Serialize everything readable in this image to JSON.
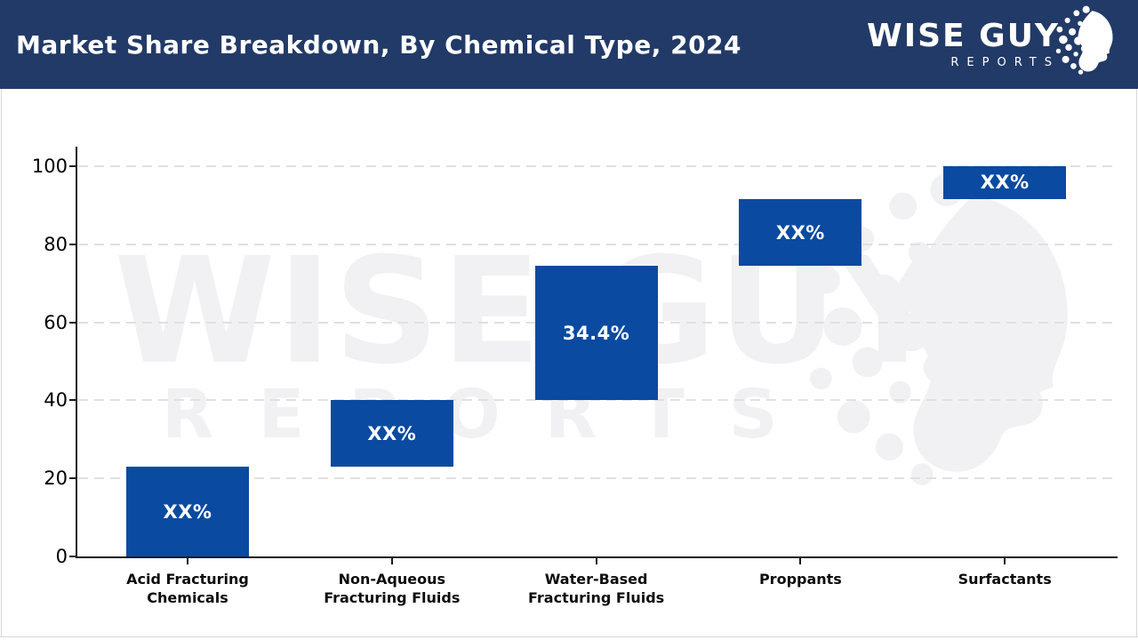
{
  "header": {
    "title": "Market Share Breakdown, By Chemical Type, 2024",
    "logo": {
      "line1": "WISE GUY",
      "line2": "REPORTS"
    }
  },
  "watermark": {
    "line1": "WISE GUY",
    "line2": "REPORTS"
  },
  "colors": {
    "header_bg": "#223a67",
    "title_color": "#ffffff",
    "bar_fill": "#0b4aa1",
    "bar_label": "#ffffff",
    "grid_line": "#e0e0e0",
    "axis_line": "#1a1a1a",
    "tick_label": "#000000",
    "category_label": "#0d0d0d",
    "watermark": "#f1f1f3",
    "page_border": "#d8d8d8"
  },
  "chart_data": {
    "type": "bar",
    "subtype": "waterfall",
    "title": "Market Share Breakdown, By Chemical Type, 2024",
    "unit": "%",
    "categories": [
      {
        "lines": [
          "Acid Fracturing",
          "Chemicals"
        ]
      },
      {
        "lines": [
          "Non-Aqueous",
          "Fracturing Fluids"
        ]
      },
      {
        "lines": [
          "Water-Based",
          "Fracturing Fluids"
        ]
      },
      {
        "lines": [
          "Proppants"
        ]
      },
      {
        "lines": [
          "Surfactants"
        ]
      }
    ],
    "series": [
      {
        "name": "Market share (%)",
        "segments": [
          {
            "start": 0,
            "end": 23,
            "label": "XX%"
          },
          {
            "start": 23,
            "end": 40,
            "label": "XX%"
          },
          {
            "start": 40,
            "end": 74.4,
            "label": "34.4%",
            "value": 34.4
          },
          {
            "start": 74.4,
            "end": 91.6,
            "label": "XX%"
          },
          {
            "start": 91.6,
            "end": 100,
            "label": "XX%"
          }
        ]
      }
    ],
    "yticks": [
      0,
      20,
      40,
      60,
      80,
      100
    ],
    "ylim": [
      0,
      105
    ],
    "grid": "horizontal-dashed",
    "legend": "none"
  }
}
